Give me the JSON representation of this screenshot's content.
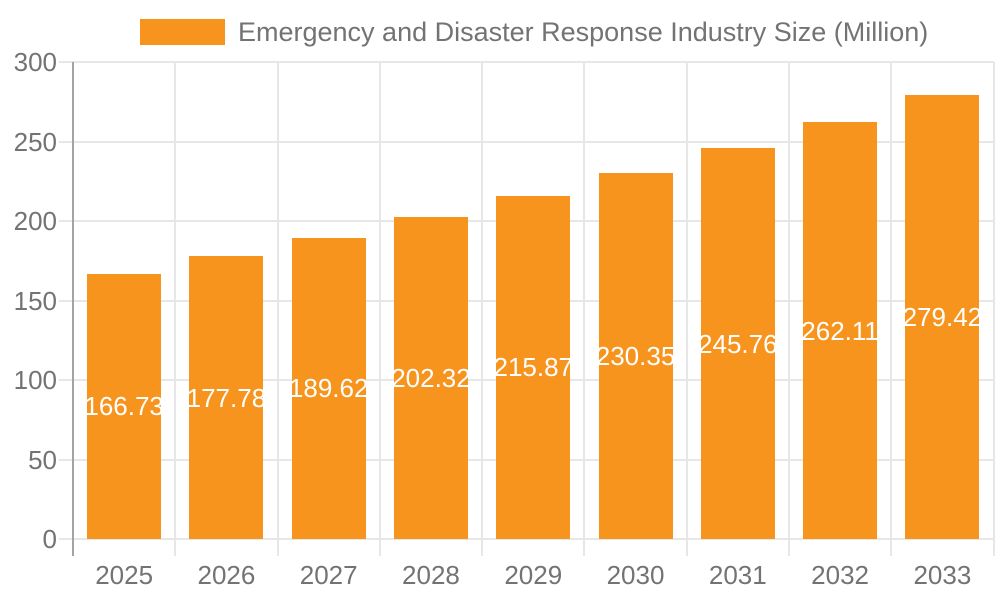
{
  "chart_data": {
    "type": "bar",
    "title": "Emergency and Disaster Response Industry Size (Million)",
    "categories": [
      "2025",
      "2026",
      "2027",
      "2028",
      "2029",
      "2030",
      "2031",
      "2032",
      "2033"
    ],
    "values": [
      166.73,
      177.78,
      189.62,
      202.32,
      215.87,
      230.35,
      245.76,
      262.11,
      279.42
    ],
    "value_labels": [
      "166.73",
      "177.78",
      "189.62",
      "202.32",
      "215.87",
      "230.35",
      "245.76",
      "262.11",
      "279.42"
    ],
    "xlabel": "",
    "ylabel": "",
    "ylim": [
      0,
      300
    ],
    "ytick_step": 50,
    "yticks": [
      "0",
      "50",
      "100",
      "150",
      "200",
      "250",
      "300"
    ],
    "grid": true,
    "legend_position": "top-center",
    "value_label_position": "inside-center",
    "colors": {
      "bar": "#F7941E",
      "value_label": "#FFFFFF",
      "grid": "#E7E7E7",
      "axis": "#A3A3A3",
      "tick_text": "#737373",
      "title_text": "#737373",
      "background": "#FFFFFF"
    }
  }
}
